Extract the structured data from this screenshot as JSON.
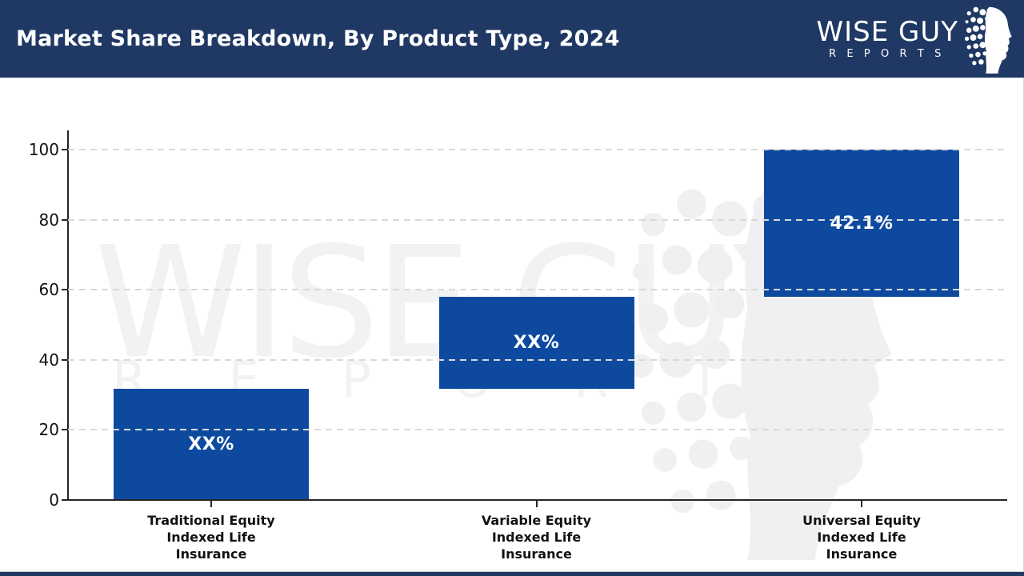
{
  "header": {
    "title": "Market Share Breakdown, By Product Type, 2024",
    "logo": {
      "primary": "WISE GUY",
      "secondary": "REPORTS",
      "face_icon": "dotted-head-profile-icon"
    }
  },
  "watermark": {
    "primary": "WISE GUY",
    "secondary": "REPORTS",
    "face_icon": "dotted-head-profile-watermark"
  },
  "footer": {
    "style": "navy-strip"
  },
  "chart_data": {
    "type": "bar",
    "variant": "waterfall",
    "title": "Market Share Breakdown, By Product Type, 2024",
    "categories": [
      [
        "Traditional Equity",
        "Indexed Life",
        "Insurance"
      ],
      [
        "Variable Equity",
        "Indexed Life",
        "Insurance"
      ],
      [
        "Universal Equity",
        "Indexed Life",
        "Insurance"
      ]
    ],
    "segments": [
      {
        "category": "Traditional Equity Indexed Life Insurance",
        "start": 0,
        "end": 31.8,
        "label": "XX%"
      },
      {
        "category": "Variable Equity Indexed Life Insurance",
        "start": 31.8,
        "end": 57.9,
        "label": "XX%"
      },
      {
        "category": "Universal Equity Indexed Life Insurance",
        "start": 57.9,
        "end": 100,
        "label": "42.1%"
      }
    ],
    "yticks": [
      0,
      20,
      40,
      60,
      80,
      100
    ],
    "ylim": [
      0,
      100
    ],
    "xlabel": "",
    "ylabel": "",
    "legend": "none",
    "grid": "horizontal-dashed-over-bars",
    "colors": {
      "bar": "#0d4a9f",
      "bar_label_text": "#ffffff",
      "axis": "#262626",
      "grid": "#d9d9d9",
      "header_bg": "#1f3864",
      "watermark": "#f2f2f4"
    }
  }
}
